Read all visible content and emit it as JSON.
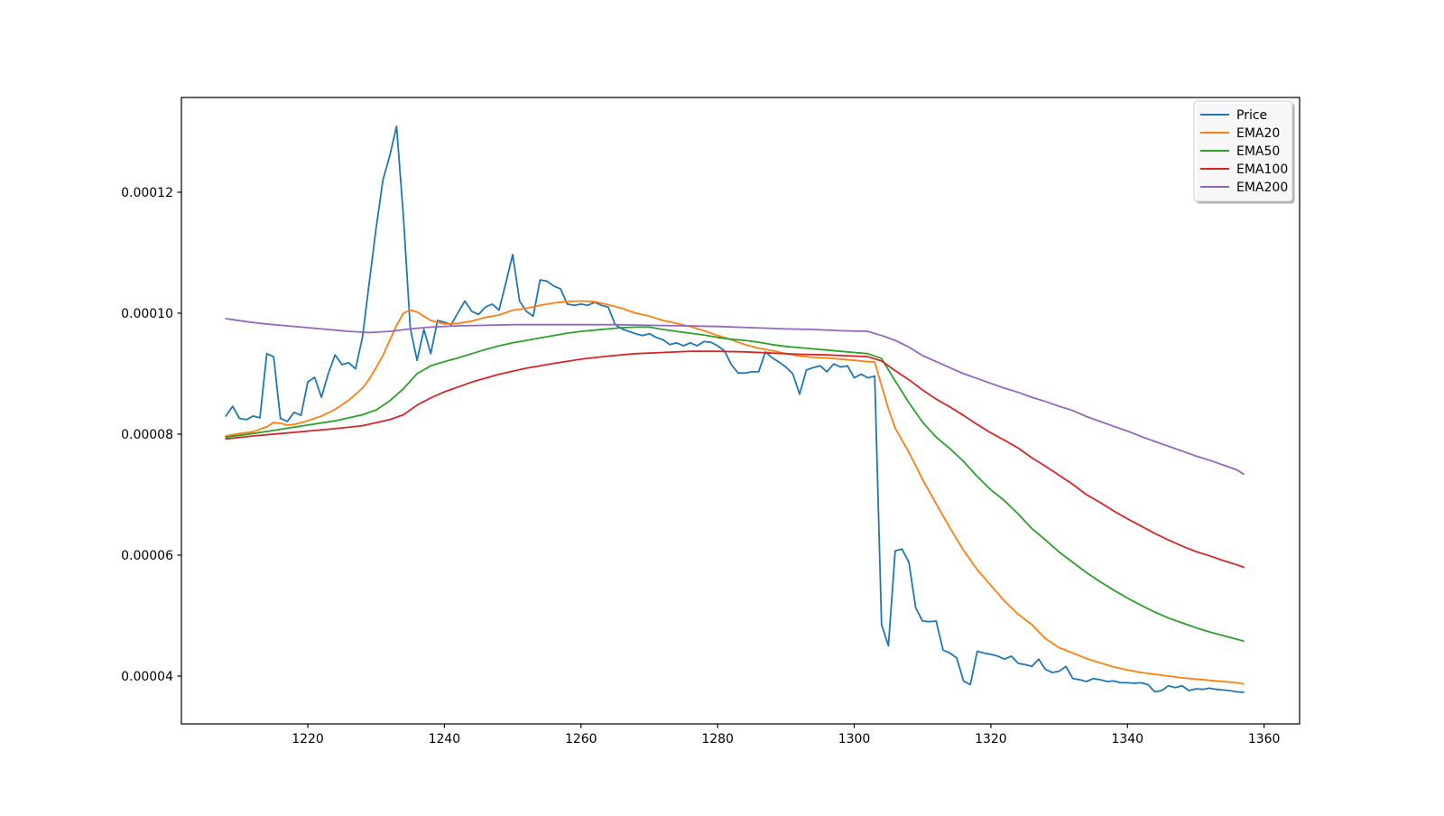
{
  "figure": {
    "background": "#ffffff",
    "plot_background": "#ffffff",
    "frame_color": "#000000",
    "tick_color": "#000000",
    "legend_border_color": "#cccccc",
    "legend_shadow_color": "#b0b0b0",
    "legend_background": "#ffffff"
  },
  "chart_data": {
    "type": "line",
    "title": "",
    "xlabel": "",
    "ylabel": "",
    "grid": false,
    "legend_position": "upper right",
    "value_scale": 1e-05,
    "xlim": [
      1201.5,
      1365.2
    ],
    "ylim_scaled": [
      3.209,
      13.566
    ],
    "x_ticks": [
      {
        "value": 1220,
        "label": "1220"
      },
      {
        "value": 1240,
        "label": "1240"
      },
      {
        "value": 1260,
        "label": "1260"
      },
      {
        "value": 1280,
        "label": "1280"
      },
      {
        "value": 1300,
        "label": "1300"
      },
      {
        "value": 1320,
        "label": "1320"
      },
      {
        "value": 1340,
        "label": "1340"
      },
      {
        "value": 1360,
        "label": "1360"
      }
    ],
    "y_ticks": [
      {
        "value": 4,
        "label": "0.00004"
      },
      {
        "value": 6,
        "label": "0.00006"
      },
      {
        "value": 8,
        "label": "0.00008"
      },
      {
        "value": 10,
        "label": "0.00010"
      },
      {
        "value": 12,
        "label": "0.00012"
      }
    ],
    "legend": [
      {
        "label": "Price",
        "color": "#1f77b4"
      },
      {
        "label": "EMA20",
        "color": "#ff7f0e"
      },
      {
        "label": "EMA50",
        "color": "#2ca02c"
      },
      {
        "label": "EMA100",
        "color": "#d62728"
      },
      {
        "label": "EMA200",
        "color": "#9467bd"
      }
    ],
    "series": [
      {
        "name": "Price",
        "color": "#1f77b4",
        "x_start": 1208,
        "x_step": 1,
        "values": [
          8.3,
          8.46,
          8.26,
          8.24,
          8.3,
          8.27,
          9.33,
          9.28,
          8.26,
          8.21,
          8.36,
          8.31,
          8.86,
          8.94,
          8.61,
          9.0,
          9.31,
          9.15,
          9.18,
          9.08,
          9.6,
          10.5,
          11.4,
          12.2,
          12.6,
          13.09,
          11.6,
          9.75,
          9.22,
          9.73,
          9.33,
          9.88,
          9.85,
          9.81,
          10.01,
          10.2,
          10.03,
          9.98,
          10.1,
          10.15,
          10.05,
          10.5,
          10.97,
          10.2,
          10.03,
          9.95,
          10.55,
          10.53,
          10.45,
          10.4,
          10.15,
          10.13,
          10.15,
          10.13,
          10.18,
          10.13,
          10.1,
          9.81,
          9.74,
          9.7,
          9.66,
          9.63,
          9.66,
          9.6,
          9.56,
          9.48,
          9.51,
          9.46,
          9.51,
          9.46,
          9.53,
          9.52,
          9.46,
          9.38,
          9.15,
          9.01,
          9.01,
          9.03,
          9.03,
          9.36,
          9.26,
          9.19,
          9.11,
          9.0,
          8.66,
          9.06,
          9.1,
          9.13,
          9.03,
          9.16,
          9.11,
          9.13,
          8.93,
          8.99,
          8.93,
          8.96,
          4.85,
          4.5,
          6.07,
          6.1,
          5.88,
          5.13,
          4.91,
          4.9,
          4.91,
          4.43,
          4.38,
          4.3,
          3.92,
          3.86,
          4.41,
          4.38,
          4.36,
          4.33,
          4.28,
          4.33,
          4.21,
          4.19,
          4.16,
          4.28,
          4.11,
          4.06,
          4.08,
          4.16,
          3.96,
          3.94,
          3.91,
          3.96,
          3.94,
          3.91,
          3.92,
          3.89,
          3.89,
          3.88,
          3.89,
          3.86,
          3.74,
          3.76,
          3.84,
          3.81,
          3.84,
          3.76,
          3.79,
          3.78,
          3.8,
          3.78,
          3.77,
          3.76,
          3.74,
          3.73
        ]
      },
      {
        "name": "EMA20",
        "color": "#ff7f0e",
        "x": [
          1208,
          1210,
          1212,
          1214,
          1215,
          1216,
          1217,
          1218,
          1220,
          1222,
          1224,
          1226,
          1228,
          1229,
          1230,
          1231,
          1232,
          1233,
          1234,
          1235,
          1236,
          1237,
          1238,
          1240,
          1242,
          1244,
          1246,
          1248,
          1250,
          1252,
          1254,
          1256,
          1258,
          1260,
          1262,
          1264,
          1266,
          1268,
          1270,
          1272,
          1274,
          1276,
          1278,
          1280,
          1282,
          1284,
          1286,
          1288,
          1290,
          1292,
          1294,
          1296,
          1298,
          1300,
          1302,
          1303,
          1304,
          1305,
          1306,
          1307,
          1308,
          1310,
          1312,
          1314,
          1316,
          1318,
          1320,
          1322,
          1324,
          1326,
          1328,
          1330,
          1332,
          1334,
          1336,
          1338,
          1340,
          1342,
          1344,
          1346,
          1348,
          1350,
          1352,
          1354,
          1356,
          1357
        ],
        "values": [
          7.97,
          8.01,
          8.04,
          8.12,
          8.19,
          8.18,
          8.15,
          8.16,
          8.22,
          8.3,
          8.41,
          8.56,
          8.76,
          8.91,
          9.1,
          9.3,
          9.55,
          9.8,
          10.0,
          10.05,
          10.02,
          9.95,
          9.88,
          9.82,
          9.83,
          9.87,
          9.93,
          9.97,
          10.05,
          10.08,
          10.13,
          10.17,
          10.19,
          10.2,
          10.19,
          10.14,
          10.08,
          10.0,
          9.95,
          9.88,
          9.83,
          9.78,
          9.71,
          9.63,
          9.56,
          9.48,
          9.42,
          9.38,
          9.33,
          9.29,
          9.27,
          9.26,
          9.24,
          9.22,
          9.2,
          9.19,
          8.8,
          8.42,
          8.1,
          7.9,
          7.7,
          7.25,
          6.85,
          6.45,
          6.08,
          5.76,
          5.5,
          5.24,
          5.02,
          4.85,
          4.62,
          4.47,
          4.38,
          4.29,
          4.22,
          4.15,
          4.1,
          4.06,
          4.03,
          4.0,
          3.97,
          3.95,
          3.93,
          3.91,
          3.89,
          3.87
        ]
      },
      {
        "name": "EMA50",
        "color": "#2ca02c",
        "x": [
          1208,
          1212,
          1216,
          1220,
          1224,
          1228,
          1230,
          1232,
          1234,
          1236,
          1238,
          1240,
          1242,
          1244,
          1246,
          1248,
          1250,
          1252,
          1254,
          1256,
          1258,
          1260,
          1262,
          1264,
          1266,
          1268,
          1270,
          1272,
          1274,
          1276,
          1278,
          1280,
          1282,
          1284,
          1286,
          1288,
          1290,
          1292,
          1294,
          1296,
          1298,
          1300,
          1302,
          1304,
          1306,
          1308,
          1310,
          1312,
          1314,
          1316,
          1318,
          1320,
          1322,
          1324,
          1326,
          1328,
          1330,
          1332,
          1334,
          1336,
          1338,
          1340,
          1342,
          1344,
          1346,
          1348,
          1350,
          1352,
          1354,
          1356,
          1357
        ],
        "values": [
          7.95,
          8.01,
          8.08,
          8.15,
          8.22,
          8.32,
          8.4,
          8.55,
          8.75,
          9.0,
          9.13,
          9.2,
          9.26,
          9.33,
          9.4,
          9.46,
          9.51,
          9.55,
          9.59,
          9.63,
          9.67,
          9.7,
          9.72,
          9.74,
          9.76,
          9.77,
          9.77,
          9.73,
          9.7,
          9.67,
          9.64,
          9.6,
          9.57,
          9.55,
          9.52,
          9.48,
          9.45,
          9.43,
          9.41,
          9.39,
          9.37,
          9.35,
          9.33,
          9.25,
          8.88,
          8.52,
          8.2,
          7.95,
          7.76,
          7.55,
          7.3,
          7.08,
          6.9,
          6.68,
          6.44,
          6.25,
          6.05,
          5.88,
          5.71,
          5.56,
          5.42,
          5.29,
          5.17,
          5.06,
          4.96,
          4.88,
          4.8,
          4.73,
          4.67,
          4.61,
          4.58
        ]
      },
      {
        "name": "EMA100",
        "color": "#d62728",
        "x": [
          1208,
          1212,
          1216,
          1220,
          1224,
          1228,
          1232,
          1234,
          1236,
          1238,
          1240,
          1244,
          1248,
          1252,
          1256,
          1260,
          1264,
          1268,
          1272,
          1276,
          1280,
          1284,
          1288,
          1292,
          1296,
          1300,
          1302,
          1304,
          1306,
          1308,
          1310,
          1312,
          1314,
          1316,
          1318,
          1320,
          1322,
          1324,
          1326,
          1328,
          1330,
          1332,
          1334,
          1336,
          1338,
          1340,
          1342,
          1344,
          1346,
          1348,
          1350,
          1352,
          1354,
          1356,
          1357
        ],
        "values": [
          7.92,
          7.97,
          8.01,
          8.05,
          8.09,
          8.14,
          8.24,
          8.32,
          8.48,
          8.6,
          8.7,
          8.86,
          8.99,
          9.09,
          9.17,
          9.24,
          9.29,
          9.33,
          9.35,
          9.37,
          9.37,
          9.36,
          9.34,
          9.32,
          9.31,
          9.29,
          9.28,
          9.21,
          9.05,
          8.9,
          8.73,
          8.58,
          8.45,
          8.31,
          8.16,
          8.02,
          7.9,
          7.77,
          7.61,
          7.47,
          7.32,
          7.17,
          7.0,
          6.87,
          6.73,
          6.6,
          6.48,
          6.36,
          6.25,
          6.15,
          6.06,
          5.99,
          5.91,
          5.84,
          5.8
        ]
      },
      {
        "name": "EMA200",
        "color": "#9467bd",
        "x": [
          1208,
          1211,
          1214,
          1217,
          1220,
          1223,
          1226,
          1229,
          1232,
          1235,
          1238,
          1242,
          1246,
          1250,
          1255,
          1260,
          1265,
          1270,
          1275,
          1280,
          1285,
          1290,
          1294,
          1298,
          1302,
          1304,
          1306,
          1308,
          1310,
          1312,
          1314,
          1316,
          1318,
          1320,
          1322,
          1324,
          1326,
          1328,
          1330,
          1332,
          1334,
          1336,
          1338,
          1340,
          1342,
          1344,
          1346,
          1348,
          1350,
          1352,
          1354,
          1356,
          1357
        ],
        "values": [
          9.91,
          9.86,
          9.82,
          9.79,
          9.76,
          9.73,
          9.7,
          9.68,
          9.7,
          9.74,
          9.77,
          9.79,
          9.8,
          9.81,
          9.81,
          9.81,
          9.81,
          9.8,
          9.79,
          9.78,
          9.76,
          9.74,
          9.73,
          9.71,
          9.7,
          9.63,
          9.55,
          9.44,
          9.3,
          9.2,
          9.1,
          9.0,
          8.92,
          8.84,
          8.76,
          8.69,
          8.61,
          8.54,
          8.46,
          8.39,
          8.29,
          8.21,
          8.13,
          8.05,
          7.96,
          7.88,
          7.8,
          7.72,
          7.64,
          7.57,
          7.49,
          7.41,
          7.34
        ]
      }
    ]
  }
}
